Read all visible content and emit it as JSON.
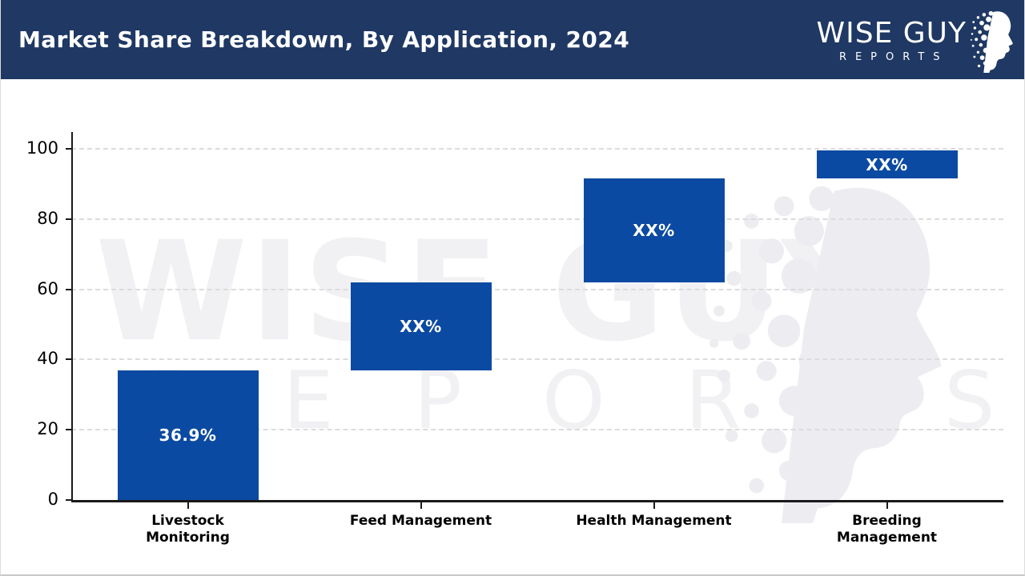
{
  "header": {
    "title": "Market Share Breakdown, By Application, 2024",
    "logo": {
      "line1": "WISE GUY",
      "line2": "REPORTS"
    }
  },
  "watermark": {
    "line1": "WISE GUY",
    "line2": "REPORTS"
  },
  "colors": {
    "header_bg": "#1f3864",
    "bar": "#0b4aa2",
    "grid": "#dcdcdc",
    "axis": "#1a1a1a",
    "watermark": "#f1f1f4",
    "title_text": "#ffffff"
  },
  "chart_data": {
    "type": "bar",
    "subtype": "waterfall",
    "title": "Market Share Breakdown, By Application, 2024",
    "xlabel": "",
    "ylabel": "",
    "ylim": [
      0,
      100
    ],
    "yticks": [
      0,
      20,
      40,
      60,
      80,
      100
    ],
    "grid": "horizontal-dashed",
    "legend": "none",
    "bar_color": "#0b4aa2",
    "categories": [
      "Livestock\nMonitoring",
      "Feed Management",
      "Health Management",
      "Breeding\nManagement"
    ],
    "segments": [
      {
        "category": "Livestock Monitoring",
        "start": 0,
        "end": 36.9,
        "label": "36.9%"
      },
      {
        "category": "Feed Management",
        "start": 37,
        "end": 62,
        "label": "XX%"
      },
      {
        "category": "Health Management",
        "start": 62,
        "end": 91.5,
        "label": "XX%"
      },
      {
        "category": "Breeding Management",
        "start": 91.5,
        "end": 99.5,
        "label": "XX%"
      }
    ]
  }
}
